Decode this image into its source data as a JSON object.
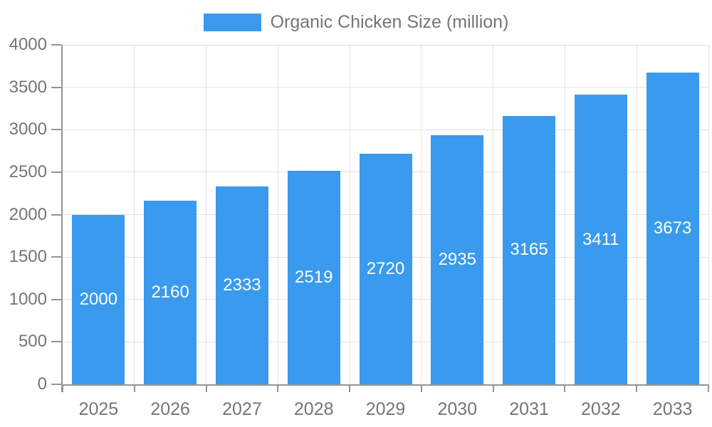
{
  "legend": {
    "label": "Organic Chicken Size (million)"
  },
  "chart_data": {
    "type": "bar",
    "title": "Organic Chicken Size (million)",
    "categories": [
      "2025",
      "2026",
      "2027",
      "2028",
      "2029",
      "2030",
      "2031",
      "2032",
      "2033"
    ],
    "values": [
      2000,
      2160,
      2333,
      2519,
      2720,
      2935,
      3165,
      3411,
      3673
    ],
    "xlabel": "",
    "ylabel": "",
    "ylim": [
      0,
      4000
    ],
    "ytick_step": 500,
    "yticks": [
      0,
      500,
      1000,
      1500,
      2000,
      2500,
      3000,
      3500,
      4000
    ],
    "grid": true,
    "legend_position": "top",
    "bar_labels_visible": true,
    "colors": {
      "bar": "#399AEE",
      "bar_label": "#ffffff",
      "axis_text": "#757575",
      "axis_line": "#949494",
      "grid_line": "#e2e2e2",
      "background": "#ffffff"
    }
  }
}
